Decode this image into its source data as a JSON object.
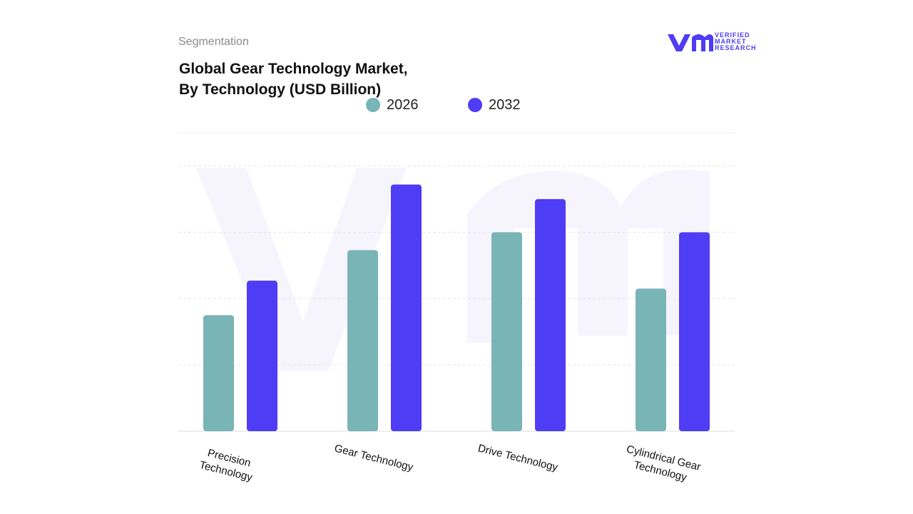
{
  "header": {
    "section": "Segmentation",
    "brand": [
      "VERIFIED",
      "MARKET",
      "RESEARCH"
    ]
  },
  "chart_data": {
    "type": "bar",
    "title": "Global Gear Technology Market, By Technology (USD Billion)",
    "categories": [
      "Precision Technology",
      "Gear Technology",
      "Drive Technology",
      "Cylindrical Gear Technology"
    ],
    "series": [
      {
        "name": "2026",
        "color": "#79b4b7",
        "values": [
          1.75,
          2.73,
          3.0,
          2.15
        ]
      },
      {
        "name": "2032",
        "color": "#4f3cf5",
        "values": [
          2.27,
          3.72,
          3.5,
          3.0
        ]
      }
    ],
    "ylim": [
      0,
      4.5
    ],
    "yticks": [
      1,
      2,
      3,
      4
    ],
    "grid": true,
    "legend": "top"
  }
}
